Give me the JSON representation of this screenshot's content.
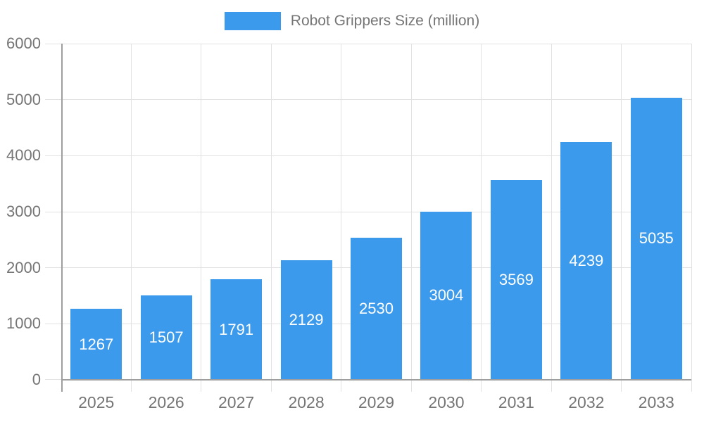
{
  "chart_data": {
    "type": "bar",
    "title": "",
    "legend": "Robot Grippers Size (million)",
    "legend_position": "top-center",
    "categories": [
      "2025",
      "2026",
      "2027",
      "2028",
      "2029",
      "2030",
      "2031",
      "2032",
      "2033"
    ],
    "values": [
      1267,
      1507,
      1791,
      2129,
      2530,
      3004,
      3569,
      4239,
      5035
    ],
    "xlabel": "",
    "ylabel": "",
    "ylim": [
      0,
      6000
    ],
    "ytick_step": 1000,
    "ytick_labels": [
      "0",
      "1000",
      "2000",
      "3000",
      "4000",
      "5000",
      "6000"
    ],
    "grid": true,
    "colors": {
      "bar": "#3c9aec",
      "value_label": "#ffffff",
      "axis_text": "#757575",
      "gridline": "#e2e2e2",
      "axis_line": "#9e9e9e",
      "background": "#ffffff"
    }
  }
}
